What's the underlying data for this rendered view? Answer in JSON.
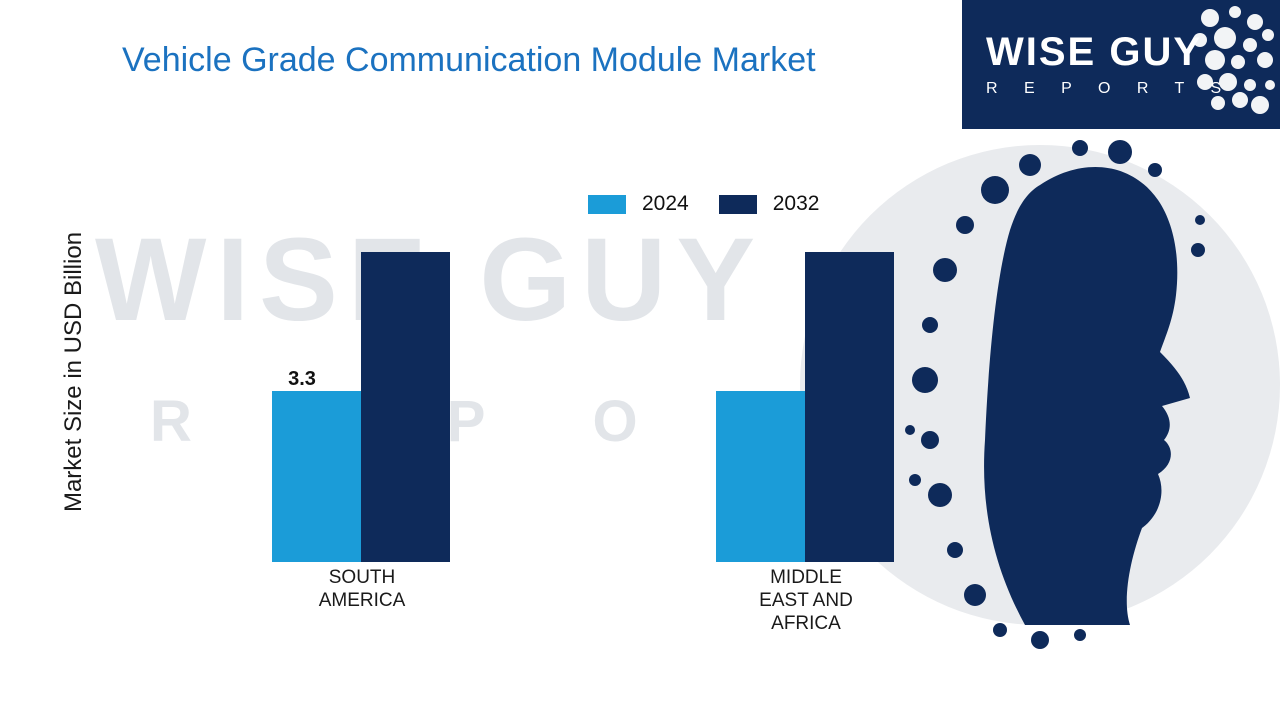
{
  "header": {
    "title": "Vehicle Grade Communication Module Market",
    "title_color": "#1b72c0"
  },
  "logo": {
    "line1": "WISE GUY",
    "line2": "R E P O R T S",
    "bg_color": "#0e2a5a"
  },
  "watermark": {
    "line1": "WISE GUY",
    "line2": "R E P O R T S"
  },
  "chart": {
    "ylabel": "Market Size in USD Billion",
    "legend": [
      {
        "label": "2024",
        "color": "#1b9cd8"
      },
      {
        "label": "2032",
        "color": "#0e2a5a"
      }
    ],
    "value_label": "3.3",
    "categories": [
      {
        "label": "SOUTH AMERICA"
      },
      {
        "label": "MIDDLE EAST AND AFRICA"
      }
    ]
  },
  "chart_data": {
    "type": "bar",
    "title": "Vehicle Grade Communication Module Market",
    "xlabel": "",
    "ylabel": "Market Size in USD Billion",
    "categories": [
      "SOUTH AMERICA",
      "MIDDLE EAST AND AFRICA"
    ],
    "series": [
      {
        "name": "2024",
        "color": "#1b9cd8",
        "values": [
          3.3,
          3.3
        ]
      },
      {
        "name": "2032",
        "color": "#0e2a5a",
        "values": [
          6.0,
          6.0
        ]
      }
    ],
    "ylim": [
      0,
      6.5
    ],
    "grid": false,
    "legend_position": "top",
    "annotations": [
      {
        "series": "2024",
        "category": "SOUTH AMERICA",
        "text": "3.3"
      }
    ]
  }
}
